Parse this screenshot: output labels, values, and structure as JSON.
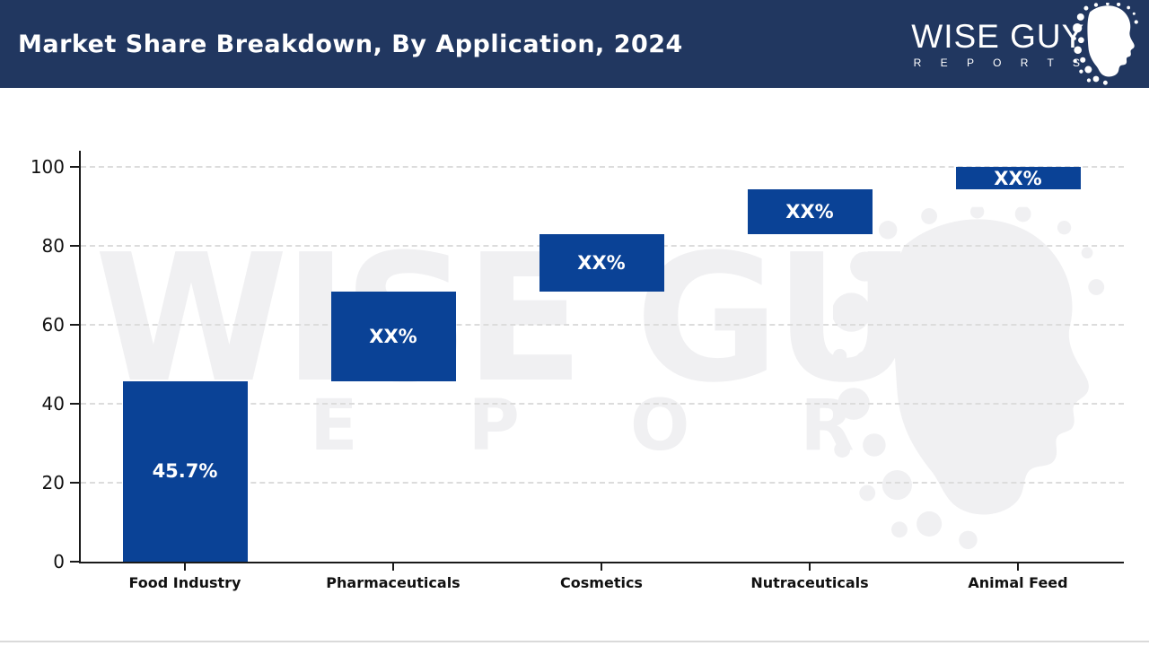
{
  "header": {
    "title": "Market Share Breakdown, By Application, 2024",
    "logo": {
      "line1": "WISE GUY",
      "line2": "R E P O R T S"
    }
  },
  "watermark": {
    "line1": "WISE GUY",
    "line2": "R E P O R T S"
  },
  "chart_data": {
    "type": "bar",
    "subtype": "waterfall",
    "title": "Market Share Breakdown, By Application, 2024",
    "categories": [
      "Food Industry",
      "Pharmaceuticals",
      "Cosmetics",
      "Nutraceuticals",
      "Animal Feed"
    ],
    "segments": [
      {
        "category": "Food Industry",
        "start": 0,
        "end": 45.7,
        "label": "45.7%"
      },
      {
        "category": "Pharmaceuticals",
        "start": 45.7,
        "end": 68.5,
        "label": "XX%"
      },
      {
        "category": "Cosmetics",
        "start": 68.5,
        "end": 83.0,
        "label": "XX%"
      },
      {
        "category": "Nutraceuticals",
        "start": 83.0,
        "end": 94.3,
        "label": "XX%"
      },
      {
        "category": "Animal Feed",
        "start": 94.3,
        "end": 100.0,
        "label": "XX%"
      }
    ],
    "xlabel": "",
    "ylabel": "",
    "ylim": [
      0,
      105
    ],
    "yticks": [
      0,
      20,
      40,
      60,
      80,
      100
    ],
    "grid": "horizontal-dashed",
    "legend": "none",
    "colors": {
      "bar": "#0a4296",
      "header_bg": "#213760",
      "grid": "#dcdcdc",
      "axis": "#1a1a1a",
      "bar_label_text": "#ffffff",
      "watermark": "#f0f0f2"
    }
  }
}
